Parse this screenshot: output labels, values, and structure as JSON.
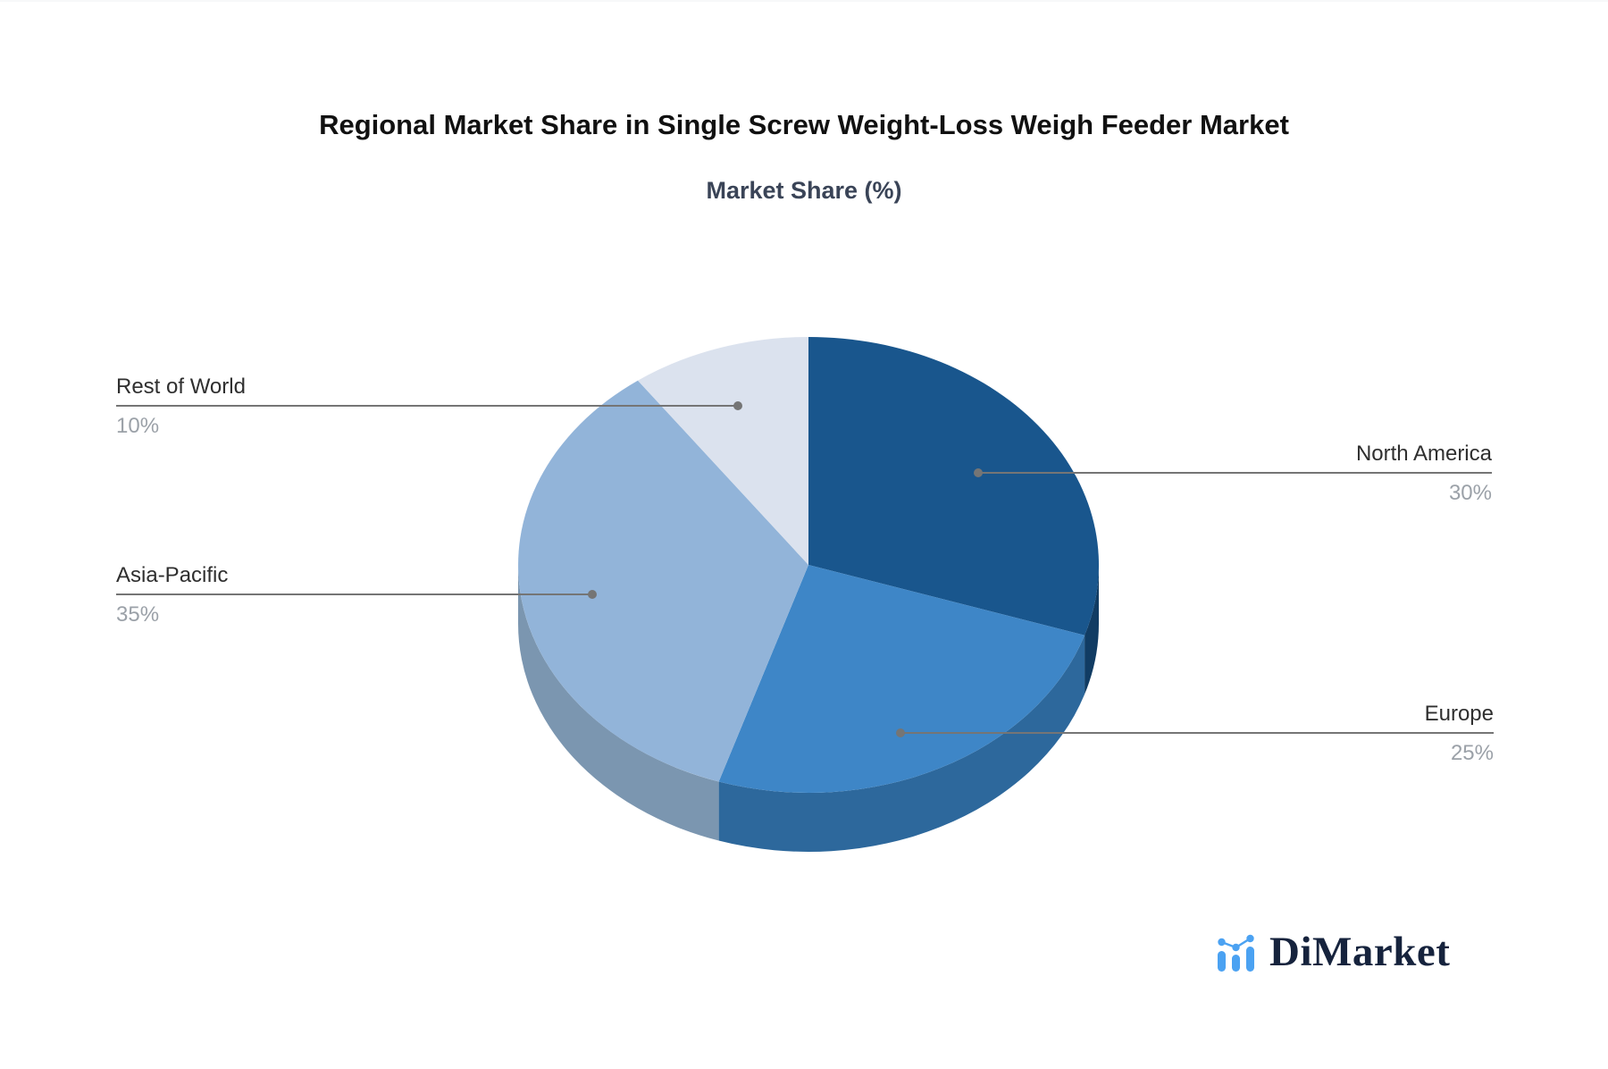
{
  "header": {
    "title": "Regional Market Share in Single Screw Weight-Loss Weigh Feeder Market",
    "subtitle": "Market Share (%)"
  },
  "chart_data": {
    "type": "pie",
    "title": "Regional Market Share in Single Screw Weight-Loss Weigh Feeder Market",
    "subtitle": "Market Share (%)",
    "unit": "%",
    "effect": "3d",
    "start_angle_deg": 90,
    "direction": "clockwise",
    "legend_position": "callout-labels",
    "slices": [
      {
        "label": "North America",
        "value": 30,
        "display": "30%",
        "color": "#19568D",
        "side_color": "#113C63"
      },
      {
        "label": "Europe",
        "value": 25,
        "display": "25%",
        "color": "#3E86C7",
        "side_color": "#2D689C"
      },
      {
        "label": "Asia-Pacific",
        "value": 35,
        "display": "35%",
        "color": "#92B4D9",
        "side_color": "#7B96B0"
      },
      {
        "label": "Rest of World",
        "value": 10,
        "display": "10%",
        "color": "#DBE2EE",
        "side_color": "#B9C4D6"
      }
    ]
  },
  "branding": {
    "name": "DiMarket",
    "icon": "bar-line-chart-icon",
    "icon_color": "#4BA2F2",
    "text_color": "#16233D"
  },
  "colors": {
    "background": "#FFFFFF",
    "title_text": "#111111",
    "subtitle_text": "#3A4457",
    "label_text": "#2F2F2F",
    "percent_text": "#9BA1A8",
    "leader_line": "#757575"
  }
}
